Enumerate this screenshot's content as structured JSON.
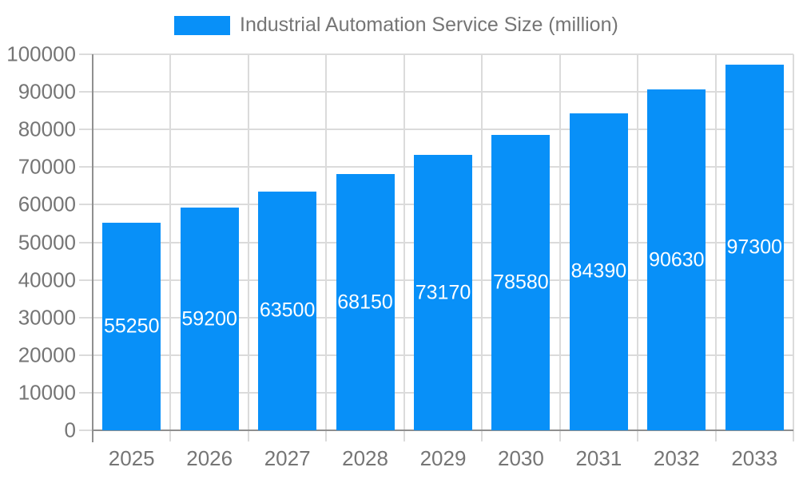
{
  "chart_data": {
    "type": "bar",
    "title": "Industrial Automation Service Size (million)",
    "legend": {
      "position": "top",
      "label": "Industrial Automation Service Size (million)"
    },
    "categories": [
      "2025",
      "2026",
      "2027",
      "2028",
      "2029",
      "2030",
      "2031",
      "2032",
      "2033"
    ],
    "values": [
      55250,
      59200,
      63500,
      68150,
      73170,
      78580,
      84390,
      90630,
      97300
    ],
    "xlabel": "",
    "ylabel": "",
    "ylim": [
      0,
      100000
    ],
    "y_ticks": [
      0,
      10000,
      20000,
      30000,
      40000,
      50000,
      60000,
      70000,
      80000,
      90000,
      100000
    ],
    "grid": true,
    "value_label_position": "inside-center"
  },
  "colors": {
    "bar": "#0890F8",
    "grid": "#DBDBDB",
    "axis": "#8F8F8F",
    "text": "#757575",
    "value_label": "#FFFFFF",
    "background": "#FFFFFF"
  }
}
